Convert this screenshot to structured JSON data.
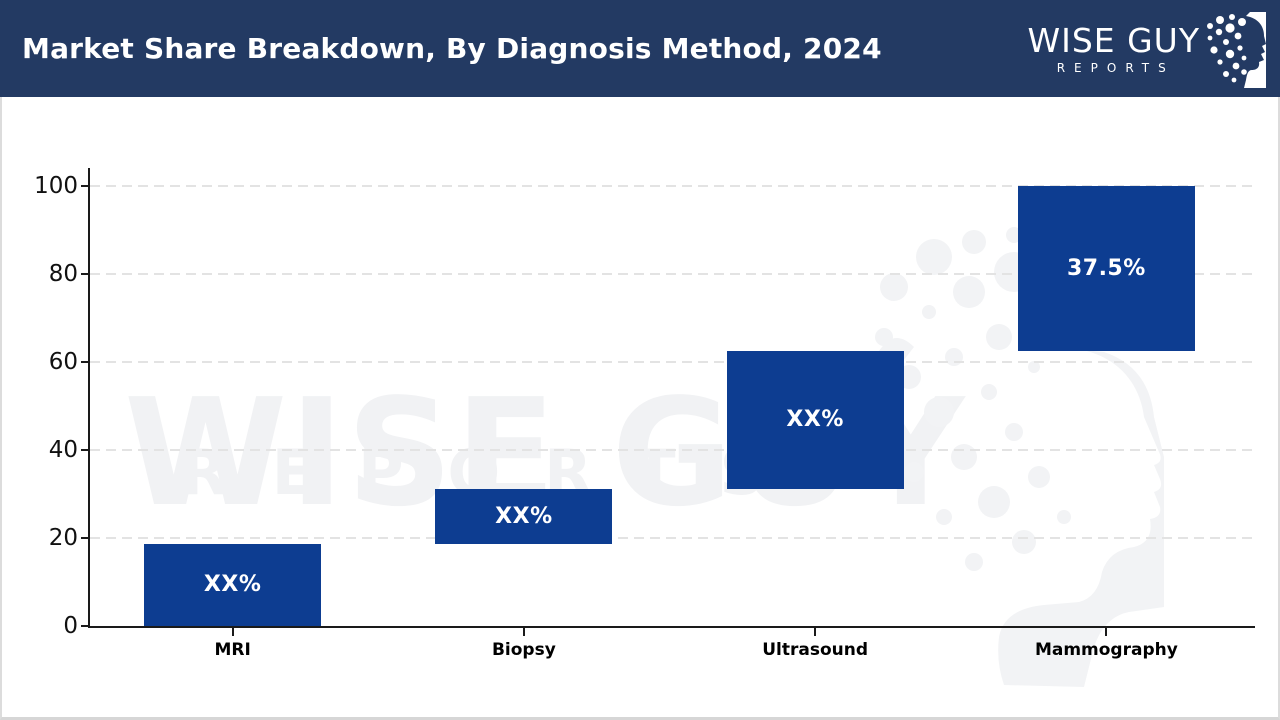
{
  "header": {
    "title": "Market Share Breakdown, By Diagnosis Method, 2024",
    "brand": {
      "line1": "WISE GUY",
      "line2": "REPORTS"
    }
  },
  "watermark": {
    "line1": "WISE GUY",
    "line2": "REPORTS"
  },
  "colors": {
    "header_bg": "#233a63",
    "bar": "#0d3d91",
    "axis": "#1a1a1a",
    "grid": "#e3e3e3",
    "watermark": "#f1f2f4",
    "bar_label": "#ffffff"
  },
  "chart_data": {
    "type": "bar",
    "subtype": "floating-waterfall",
    "title": "Market Share Breakdown, By Diagnosis Method, 2024",
    "xlabel": "",
    "ylabel": "",
    "categories": [
      "MRI",
      "Biopsy",
      "Ultrasound",
      "Mammography"
    ],
    "bars": [
      {
        "category": "MRI",
        "start": 0,
        "end": 18.75,
        "value": 18.75,
        "label": "XX%"
      },
      {
        "category": "Biopsy",
        "start": 18.75,
        "end": 31.25,
        "value": 12.5,
        "label": "XX%"
      },
      {
        "category": "Ultrasound",
        "start": 31.25,
        "end": 62.5,
        "value": 31.25,
        "label": "XX%"
      },
      {
        "category": "Mammography",
        "start": 62.5,
        "end": 100,
        "value": 37.5,
        "label": "37.5%"
      }
    ],
    "yticks": [
      0,
      20,
      40,
      60,
      80,
      100
    ],
    "ylim": [
      0,
      100
    ],
    "grid": "dashed-horizontal",
    "legend": "none"
  }
}
